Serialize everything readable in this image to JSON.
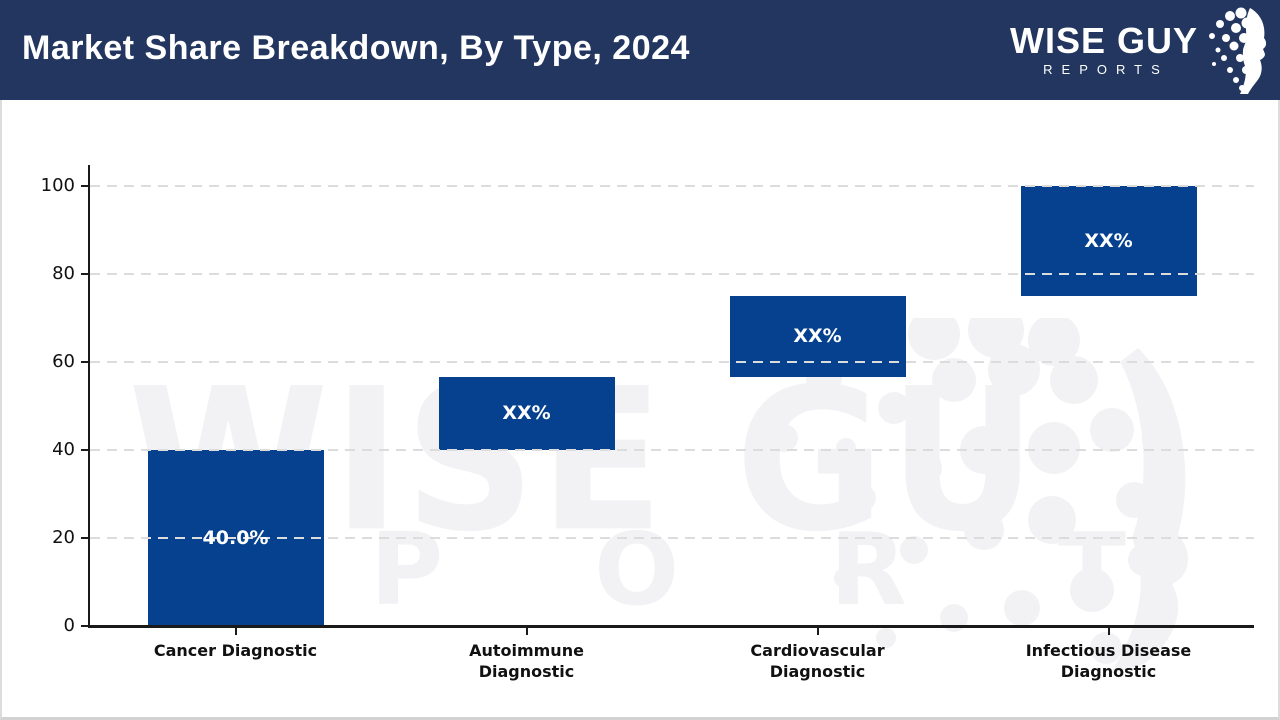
{
  "header": {
    "title": "Market Share Breakdown, By Type, 2024",
    "logo": {
      "line1": "WISE GUY",
      "line2": "REPORTS"
    }
  },
  "watermark": {
    "line1": "WISE GU",
    "line2": "P O R T S"
  },
  "chart_data": {
    "type": "bar",
    "subtype": "waterfall",
    "title": "Market Share Breakdown, By Type, 2024",
    "categories": [
      "Cancer Diagnostic",
      "Autoimmune Diagnostic",
      "Cardiovascular Diagnostic",
      "Infectious Disease Diagnostic"
    ],
    "category_display": [
      "Cancer Diagnostic",
      "Autoimmune\nDiagnostic",
      "Cardiovascular\nDiagnostic",
      "Infectious Disease\nDiagnostic"
    ],
    "bars": [
      {
        "category": "Cancer Diagnostic",
        "base": 0,
        "top": 40,
        "value": 40,
        "label": "40.0%"
      },
      {
        "category": "Autoimmune Diagnostic",
        "base": 40,
        "top": 56.7,
        "value": 16.7,
        "label": "XX%"
      },
      {
        "category": "Cardiovascular Diagnostic",
        "base": 56.7,
        "top": 75,
        "value": 18.3,
        "label": "XX%"
      },
      {
        "category": "Infectious Disease Diagnostic",
        "base": 75,
        "top": 100,
        "value": 25,
        "label": "XX%"
      }
    ],
    "xlabel": "",
    "ylabel": "",
    "ylim": [
      0,
      104.5
    ],
    "yticks": [
      0,
      20,
      40,
      60,
      80,
      100
    ],
    "grid": "horizontal-dashed",
    "legend": "none"
  },
  "colors": {
    "header_bg": "#22365f",
    "bar": "#05418f",
    "bar_label": "#ffffff",
    "axis": "#1a1a1a",
    "grid": "#dcdcdc",
    "tick_text": "#111111",
    "watermark": "#f2f2f5",
    "canvas_bg": "#ffffff"
  }
}
